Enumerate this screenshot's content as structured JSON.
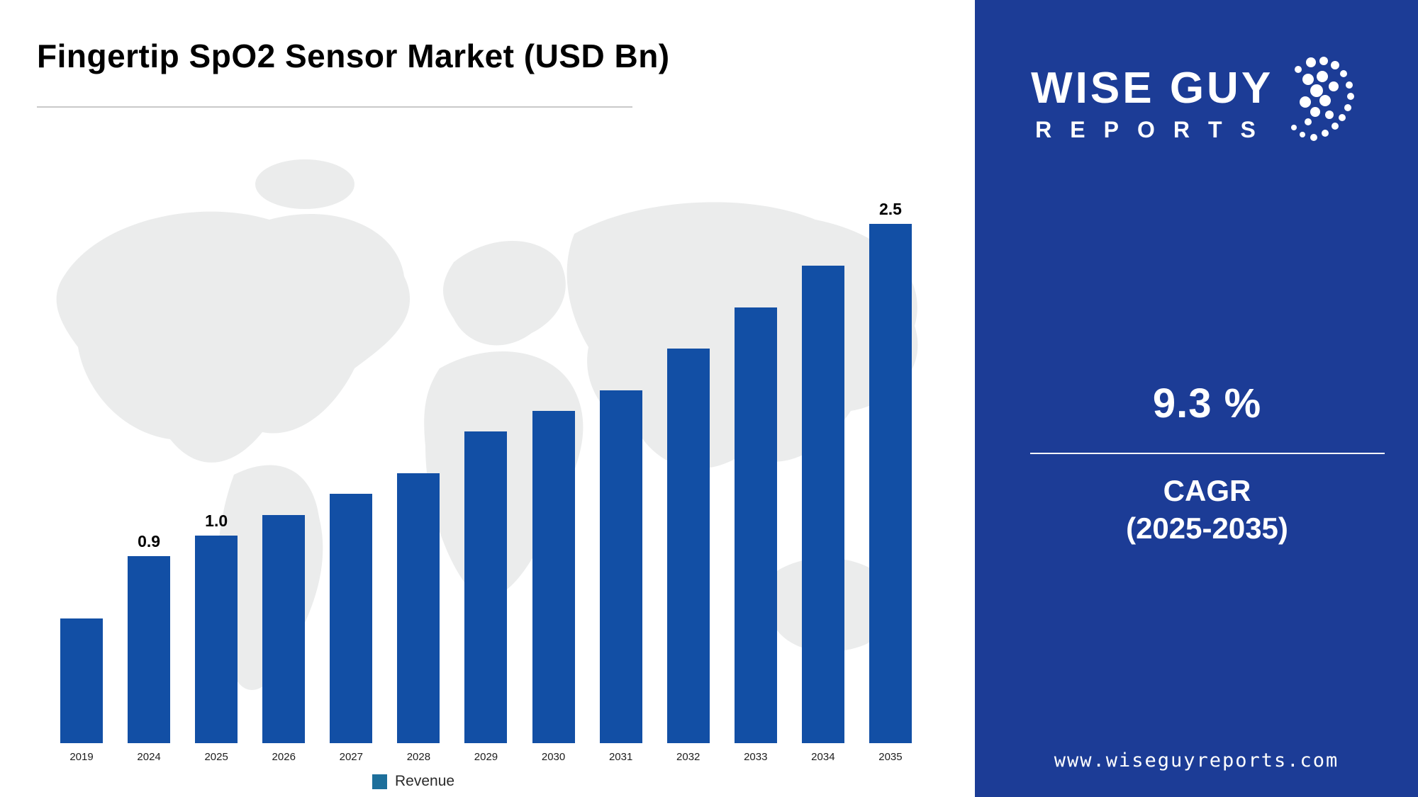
{
  "page": {
    "title": "Fingertip SpO2 Sensor Market (USD Bn)"
  },
  "chart_data": {
    "type": "bar",
    "title": "Fingertip SpO2 Sensor Market (USD Bn)",
    "unit": "USD Bn",
    "categories": [
      "2019",
      "2024",
      "2025",
      "2026",
      "2027",
      "2028",
      "2029",
      "2030",
      "2031",
      "2032",
      "2033",
      "2034",
      "2035"
    ],
    "values": [
      0.6,
      0.9,
      1.0,
      1.1,
      1.2,
      1.3,
      1.5,
      1.6,
      1.7,
      1.9,
      2.1,
      2.3,
      2.5
    ],
    "bar_labels": [
      "",
      "0.9",
      "1.0",
      "",
      "",
      "",
      "",
      "",
      "",
      "",
      "",
      "",
      "2.5"
    ],
    "xlabel": "",
    "ylabel": "",
    "ylim": [
      0,
      2.8
    ],
    "grid": false,
    "legend": [
      "Revenue"
    ],
    "legend_position": "bottom",
    "bar_color": "#124fa5"
  },
  "legend": {
    "label": "Revenue",
    "swatch_color": "#1d6f9b"
  },
  "sidebar": {
    "background": "#1c3c96",
    "logo_line1": "WISE GUY",
    "logo_line2": "REPORTS",
    "cagr_value": "9.3 %",
    "cagr_line1": "CAGR",
    "cagr_line2": "(2025-2035)",
    "website": "www.wiseguyreports.com"
  }
}
